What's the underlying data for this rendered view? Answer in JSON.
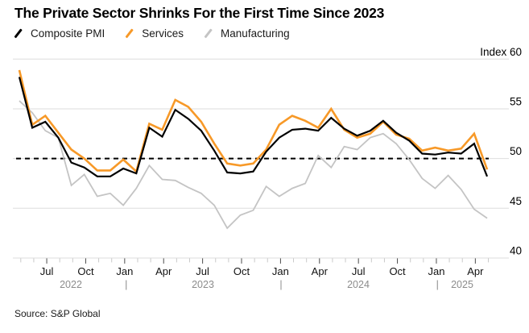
{
  "title": "The Private Sector Shrinks For the First Time Since 2023",
  "source": "Source: S&P Global",
  "legend": [
    {
      "label": "Composite PMI",
      "color": "#000000"
    },
    {
      "label": "Services",
      "color": "#F79928"
    },
    {
      "label": "Manufacturing",
      "color": "#C4C4C4"
    }
  ],
  "y_axis": {
    "labels": [
      {
        "text": "Index 60",
        "value": 60
      },
      {
        "text": "55",
        "value": 55
      },
      {
        "text": "50",
        "value": 50
      },
      {
        "text": "45",
        "value": 45
      },
      {
        "text": "40",
        "value": 40
      }
    ]
  },
  "x_axis": {
    "tick_labels": [
      "Jul",
      "Oct",
      "Jan",
      "Apr",
      "Jul",
      "Oct",
      "Jan",
      "Apr",
      "Jul",
      "Oct",
      "Jan",
      "Apr"
    ],
    "year_labels": [
      "2022",
      "|",
      "2023",
      "|",
      "2024",
      "|",
      "2025"
    ]
  },
  "colors": {
    "grid": "#DEDEDE",
    "reference_line": "#000000",
    "minor_tick": "#C9C9C9",
    "major_tick": "#4a4a4a"
  },
  "chart_data": {
    "type": "line",
    "title": "The Private Sector Shrinks For the First Time Since 2023",
    "ylabel": "Index",
    "frequency": "monthly",
    "x_start": "Apr 2022",
    "x_end": "Apr 2025",
    "ylim": [
      40,
      60
    ],
    "grid": true,
    "legend_position": "top",
    "reference_line": 50,
    "categories": [
      "Apr 2022",
      "May 2022",
      "Jun 2022",
      "Jul 2022",
      "Aug 2022",
      "Sep 2022",
      "Oct 2022",
      "Nov 2022",
      "Dec 2022",
      "Jan 2023",
      "Feb 2023",
      "Mar 2023",
      "Apr 2023",
      "May 2023",
      "Jun 2023",
      "Jul 2023",
      "Aug 2023",
      "Sep 2023",
      "Oct 2023",
      "Nov 2023",
      "Dec 2023",
      "Jan 2024",
      "Feb 2024",
      "Mar 2024",
      "Apr 2024",
      "May 2024",
      "Jun 2024",
      "Jul 2024",
      "Aug 2024",
      "Sep 2024",
      "Oct 2024",
      "Nov 2024",
      "Dec 2024",
      "Jan 2025",
      "Feb 2025",
      "Mar 2025",
      "Apr 2025"
    ],
    "series": [
      {
        "name": "Composite PMI",
        "color": "#000000",
        "values": [
          58.2,
          53.1,
          53.7,
          52.1,
          49.6,
          49.1,
          48.2,
          48.2,
          49.0,
          48.5,
          53.1,
          52.2,
          54.9,
          54.0,
          52.8,
          50.8,
          48.6,
          48.5,
          48.7,
          50.7,
          52.1,
          52.9,
          53.0,
          52.8,
          54.1,
          53.0,
          52.3,
          52.8,
          53.8,
          52.6,
          51.8,
          50.5,
          50.4,
          50.6,
          50.5,
          51.5,
          48.2
        ]
      },
      {
        "name": "Services",
        "color": "#F79928",
        "values": [
          58.9,
          53.4,
          54.3,
          52.6,
          50.9,
          50.0,
          48.8,
          48.8,
          49.9,
          48.7,
          53.5,
          52.9,
          55.9,
          55.2,
          53.7,
          51.5,
          49.5,
          49.3,
          49.5,
          50.9,
          53.4,
          54.3,
          53.8,
          53.1,
          55.0,
          52.9,
          52.1,
          52.5,
          53.7,
          52.4,
          52.0,
          50.8,
          51.1,
          50.8,
          51.0,
          52.5,
          48.9
        ]
      },
      {
        "name": "Manufacturing",
        "color": "#C4C4C4",
        "values": [
          55.8,
          54.6,
          52.8,
          52.1,
          47.3,
          48.4,
          46.2,
          46.5,
          45.3,
          47.0,
          49.3,
          47.9,
          47.8,
          47.1,
          46.5,
          45.3,
          43.0,
          44.3,
          44.8,
          47.2,
          46.2,
          47.0,
          47.5,
          50.3,
          49.1,
          51.2,
          50.9,
          52.1,
          52.5,
          51.5,
          49.9,
          48.0,
          47.0,
          48.3,
          46.9,
          44.9,
          44.0
        ]
      }
    ]
  }
}
